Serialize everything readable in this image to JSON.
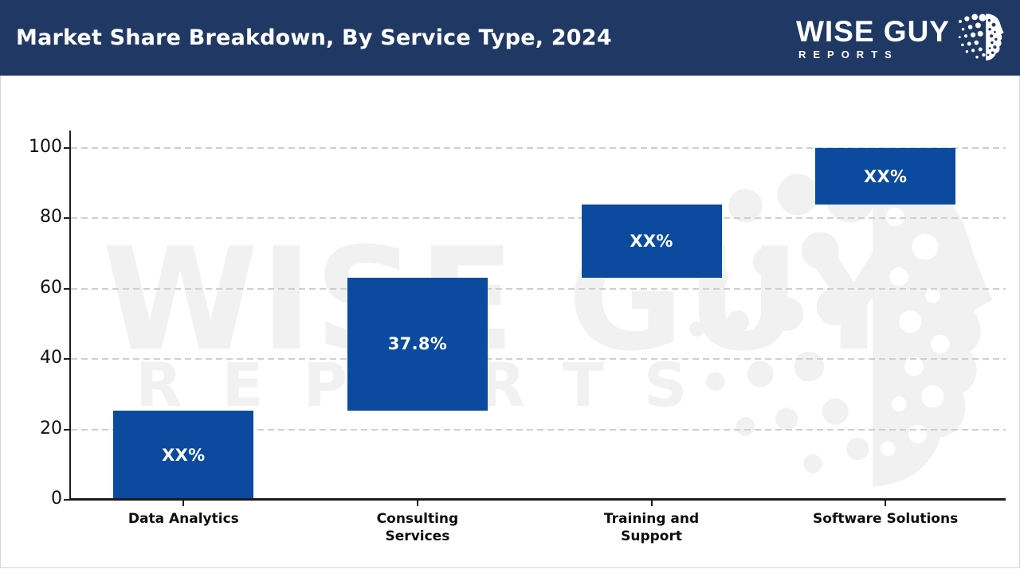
{
  "header": {
    "title": "Market Share Breakdown, By Service Type, 2024",
    "logo": {
      "line1": "WISE GUY",
      "line2": "REPORTS"
    }
  },
  "watermark": {
    "line1": "WISE GUY",
    "line2": "REPORTS"
  },
  "colors": {
    "header_bg": "#203864",
    "bar_blue": "#0b4a9e",
    "bar_label_text": "#ffffff",
    "gridline": "#cfcfcf",
    "axis": "#1c1c1c",
    "watermark_gray": "#f1f1f1"
  },
  "chart_data": {
    "type": "bar",
    "subtype": "floating-waterfall",
    "title": "Market Share Breakdown, By Service Type, 2024",
    "categories": [
      "Data Analytics",
      "Consulting Services",
      "Training and Support",
      "Software Solutions"
    ],
    "category_label_lines": [
      [
        "Data Analytics"
      ],
      [
        "Consulting",
        "Services"
      ],
      [
        "Training and",
        "Support"
      ],
      [
        "Software Solutions"
      ]
    ],
    "segments": [
      {
        "start": 0,
        "end": 25.4,
        "label": "XX%"
      },
      {
        "start": 25.4,
        "end": 63.2,
        "label": "37.8%"
      },
      {
        "start": 63.2,
        "end": 83.9,
        "label": "XX%"
      },
      {
        "start": 83.9,
        "end": 100,
        "label": "XX%"
      }
    ],
    "values": [
      25.4,
      37.8,
      20.7,
      16.1
    ],
    "value_labels": [
      "XX%",
      "37.8%",
      "XX%",
      "XX%"
    ],
    "xlabel": "",
    "ylabel": "",
    "yticks": [
      0,
      20,
      40,
      60,
      80,
      100
    ],
    "ylim": [
      0,
      100
    ],
    "grid": "horizontal-dashed",
    "legend": "none"
  }
}
